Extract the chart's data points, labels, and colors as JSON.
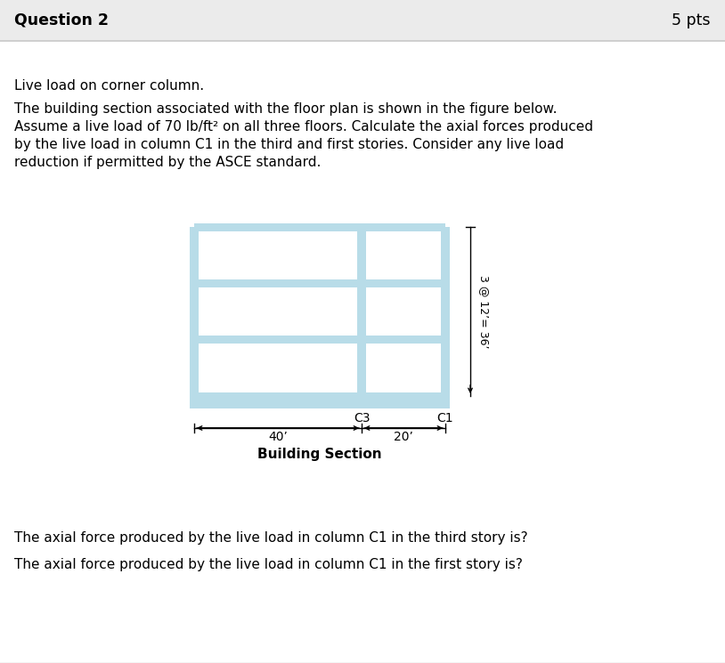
{
  "bg_color": "#ebebeb",
  "white": "#ffffff",
  "title_text": "Question 2",
  "pts_text": "5 pts",
  "subtitle_text": "Live load on corner column.",
  "body_line1": "The building section associated with the floor plan is shown in the figure below.",
  "body_line2": "Assume a live load of 70 lb/ft² on all three floors. Calculate the axial forces produced",
  "body_line3": "by the live load in column C1 in the third and first stories. Consider any live load",
  "body_line4": "reduction if permitted by the ASCE standard.",
  "footer1": "The axial force produced by the live load in column C1 in the third story is?",
  "footer2": "The axial force produced by the live load in column C1 in the first story is?",
  "building_section_label": "Building Section",
  "dim_label_40": "40’",
  "dim_label_20": "20’",
  "height_label": "3 @ 12’= 36’",
  "col_label_c3": "C3",
  "col_label_c1": "C1",
  "light_blue": "#b8dce8",
  "sep_line_color": "#c8c8c8"
}
